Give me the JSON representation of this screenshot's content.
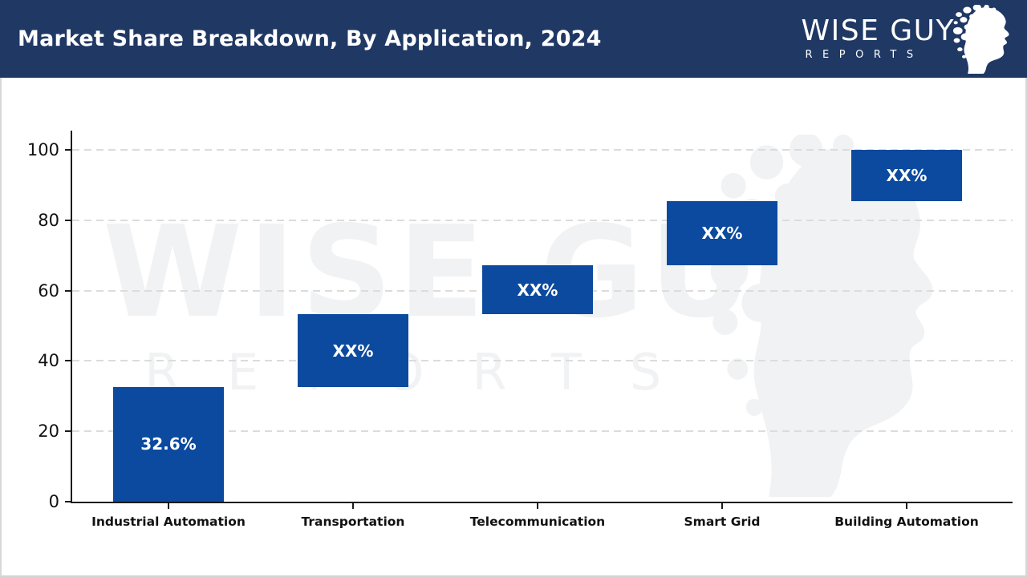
{
  "header": {
    "title": "Market Share Breakdown, By Application, 2024",
    "brand": {
      "name": "WISE GUY",
      "subtitle": "REPORTS"
    }
  },
  "watermark": {
    "line1": "WISE GUY",
    "line2": "REPORTS"
  },
  "colors": {
    "header_bg": "#203864",
    "bar": "#0b4a9e",
    "bar_label": "#ffffff",
    "grid": "#dcdcdc",
    "axis": "#1a1a1a",
    "watermark": "#f1f2f4",
    "frame_border": "#d8d8d8"
  },
  "chart_data": {
    "type": "bar",
    "subtype": "waterfall",
    "title": "Market Share Breakdown, By Application, 2024",
    "categories": [
      "Industrial Automation",
      "Transportation",
      "Telecommunication",
      "Smart Grid",
      "Building Automation"
    ],
    "segments": [
      {
        "category": "Industrial Automation",
        "label": "32.6%",
        "start": 0,
        "end": 32.6
      },
      {
        "category": "Transportation",
        "label": "XX%",
        "start": 32.6,
        "end": 53.2
      },
      {
        "category": "Telecommunication",
        "label": "XX%",
        "start": 53.2,
        "end": 67.2
      },
      {
        "category": "Smart Grid",
        "label": "XX%",
        "start": 67.2,
        "end": 85.5
      },
      {
        "category": "Building Automation",
        "label": "XX%",
        "start": 85.5,
        "end": 100
      }
    ],
    "increments": [
      32.6,
      20.6,
      14.0,
      18.3,
      14.5
    ],
    "ylim": [
      0,
      100
    ],
    "yticks": [
      0,
      20,
      40,
      60,
      80,
      100
    ],
    "grid": "horizontal-dashed",
    "legend": "none"
  }
}
